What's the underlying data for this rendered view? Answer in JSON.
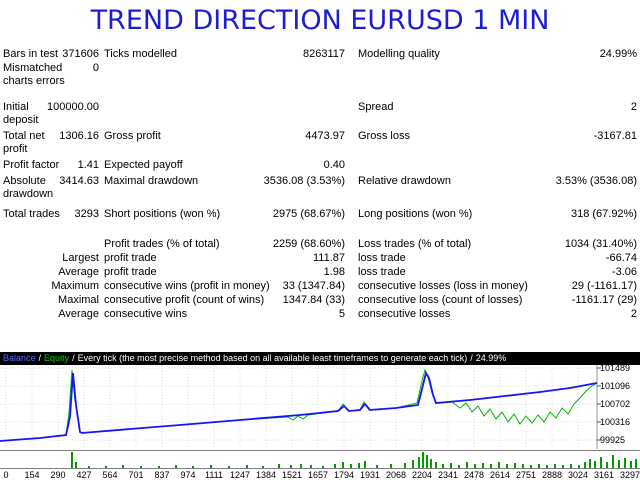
{
  "title": "TREND DIRECTION EURUSD 1 MIN",
  "stats": {
    "rows": [
      [
        "Bars in test",
        "371606",
        "Ticks modelled",
        "8263117",
        "Modelling quality",
        "24.99%"
      ],
      [
        "Mismatched charts errors",
        "0",
        "",
        "",
        "",
        ""
      ],
      [
        "Initial deposit",
        "100000.00",
        "",
        "",
        "Spread",
        "2"
      ],
      [
        "Total net profit",
        "1306.16",
        "Gross profit",
        "4473.97",
        "Gross loss",
        "-3167.81"
      ],
      [
        "Profit factor",
        "1.41",
        "Expected payoff",
        "0.40",
        "",
        ""
      ],
      [
        "Absolute drawdown",
        "3414.63",
        "Maximal drawdown",
        "3536.08 (3.53%)",
        "Relative drawdown",
        "3.53% (3536.08)"
      ],
      [
        "Total trades",
        "3293",
        "Short positions (won %)",
        "2975 (68.67%)",
        "Long positions (won %)",
        "318 (67.92%)"
      ],
      [
        "",
        "",
        "Profit trades (% of total)",
        "2259 (68.60%)",
        "Loss trades (% of total)",
        "1034 (31.40%)"
      ],
      [
        "",
        "Largest",
        "profit trade",
        "111.87",
        "loss trade",
        "-66.74"
      ],
      [
        "",
        "Average",
        "profit trade",
        "1.98",
        "loss trade",
        "-3.06"
      ],
      [
        "",
        "Maximum",
        "consecutive wins (profit in money)",
        "33 (1347.84)",
        "consecutive losses (loss in money)",
        "29 (-1161.17)"
      ],
      [
        "",
        "Maximal",
        "consecutive profit (count of wins)",
        "1347.84 (33)",
        "consecutive loss (count of losses)",
        "-1161.17 (29)"
      ],
      [
        "",
        "Average",
        "consecutive wins",
        "5",
        "consecutive losses",
        "2"
      ]
    ]
  },
  "chart": {
    "legend": {
      "balance_label": "Balance",
      "equity_label": "Equity",
      "separator": "/",
      "method": "Every tick (the most precise method based on all available least timeframes to generate each tick)",
      "quality": "24.99%"
    },
    "price_labels": [
      "101489",
      "101096",
      "100702",
      "100316",
      "99925"
    ],
    "x_labels": [
      "0",
      "154",
      "290",
      "427",
      "564",
      "701",
      "837",
      "974",
      "1111",
      "1247",
      "1384",
      "1521",
      "1657",
      "1794",
      "1931",
      "2068",
      "2204",
      "2341",
      "2478",
      "2614",
      "2751",
      "2888",
      "3024",
      "3161",
      "3297"
    ],
    "colors": {
      "title": "#1c1fd1",
      "balance": "#1515ff",
      "equity": "#00b400",
      "bars": "#009c00",
      "grid": "#dcdcdc",
      "axis": "#999999",
      "header_bg": "#000000",
      "balance_label": "#5468ff",
      "equity_label": "#00cc00"
    },
    "balance_points": [
      [
        0,
        76
      ],
      [
        40,
        73
      ],
      [
        66,
        70
      ],
      [
        70,
        52
      ],
      [
        73,
        8
      ],
      [
        76,
        40
      ],
      [
        80,
        67
      ],
      [
        82,
        68
      ],
      [
        130,
        64
      ],
      [
        180,
        60
      ],
      [
        240,
        55
      ],
      [
        300,
        50
      ],
      [
        338,
        46
      ],
      [
        344,
        41
      ],
      [
        349,
        46
      ],
      [
        360,
        45
      ],
      [
        365,
        39
      ],
      [
        370,
        45
      ],
      [
        396,
        43
      ],
      [
        418,
        40
      ],
      [
        423,
        20
      ],
      [
        426,
        8
      ],
      [
        429,
        13
      ],
      [
        433,
        30
      ],
      [
        436,
        38
      ],
      [
        470,
        35
      ],
      [
        505,
        31
      ],
      [
        540,
        27
      ],
      [
        570,
        23
      ],
      [
        597,
        18
      ]
    ],
    "equity_points": [
      [
        0,
        76
      ],
      [
        40,
        73
      ],
      [
        66,
        70
      ],
      [
        69,
        48
      ],
      [
        72,
        5
      ],
      [
        75,
        36
      ],
      [
        80,
        67
      ],
      [
        82,
        68
      ],
      [
        130,
        64
      ],
      [
        180,
        60
      ],
      [
        240,
        55
      ],
      [
        288,
        52
      ],
      [
        293,
        55
      ],
      [
        298,
        51
      ],
      [
        303,
        54
      ],
      [
        308,
        50
      ],
      [
        338,
        46
      ],
      [
        343,
        39
      ],
      [
        348,
        46
      ],
      [
        360,
        45
      ],
      [
        364,
        37
      ],
      [
        369,
        45
      ],
      [
        396,
        43
      ],
      [
        417,
        38
      ],
      [
        422,
        16
      ],
      [
        425,
        5
      ],
      [
        428,
        12
      ],
      [
        432,
        28
      ],
      [
        436,
        38
      ],
      [
        452,
        37
      ],
      [
        460,
        43
      ],
      [
        466,
        38
      ],
      [
        472,
        47
      ],
      [
        478,
        41
      ],
      [
        484,
        51
      ],
      [
        490,
        44
      ],
      [
        496,
        54
      ],
      [
        502,
        47
      ],
      [
        508,
        57
      ],
      [
        514,
        49
      ],
      [
        520,
        59
      ],
      [
        526,
        51
      ],
      [
        532,
        58
      ],
      [
        538,
        50
      ],
      [
        544,
        57
      ],
      [
        550,
        47
      ],
      [
        556,
        53
      ],
      [
        562,
        43
      ],
      [
        568,
        49
      ],
      [
        574,
        39
      ],
      [
        580,
        33
      ],
      [
        586,
        26
      ],
      [
        592,
        21
      ],
      [
        597,
        18
      ]
    ],
    "bars": [
      [
        71,
        16
      ],
      [
        75,
        6
      ],
      [
        88,
        2
      ],
      [
        105,
        2
      ],
      [
        122,
        3
      ],
      [
        140,
        2
      ],
      [
        158,
        2
      ],
      [
        175,
        3
      ],
      [
        192,
        2
      ],
      [
        210,
        3
      ],
      [
        228,
        2
      ],
      [
        246,
        3
      ],
      [
        262,
        2
      ],
      [
        278,
        4
      ],
      [
        290,
        3
      ],
      [
        300,
        4
      ],
      [
        310,
        3
      ],
      [
        322,
        2
      ],
      [
        334,
        4
      ],
      [
        342,
        6
      ],
      [
        350,
        4
      ],
      [
        358,
        5
      ],
      [
        364,
        7
      ],
      [
        376,
        3
      ],
      [
        390,
        4
      ],
      [
        404,
        5
      ],
      [
        412,
        8
      ],
      [
        418,
        11
      ],
      [
        422,
        16
      ],
      [
        426,
        13
      ],
      [
        430,
        9
      ],
      [
        435,
        6
      ],
      [
        442,
        4
      ],
      [
        450,
        5
      ],
      [
        458,
        3
      ],
      [
        466,
        6
      ],
      [
        474,
        4
      ],
      [
        482,
        5
      ],
      [
        490,
        4
      ],
      [
        498,
        6
      ],
      [
        506,
        4
      ],
      [
        514,
        5
      ],
      [
        522,
        4
      ],
      [
        530,
        3
      ],
      [
        538,
        4
      ],
      [
        546,
        3
      ],
      [
        554,
        4
      ],
      [
        562,
        3
      ],
      [
        570,
        4
      ],
      [
        578,
        3
      ],
      [
        584,
        6
      ],
      [
        589,
        9
      ],
      [
        594,
        7
      ],
      [
        600,
        11
      ],
      [
        606,
        6
      ],
      [
        612,
        13
      ],
      [
        618,
        8
      ],
      [
        624,
        10
      ],
      [
        630,
        7
      ],
      [
        635,
        9
      ]
    ]
  }
}
